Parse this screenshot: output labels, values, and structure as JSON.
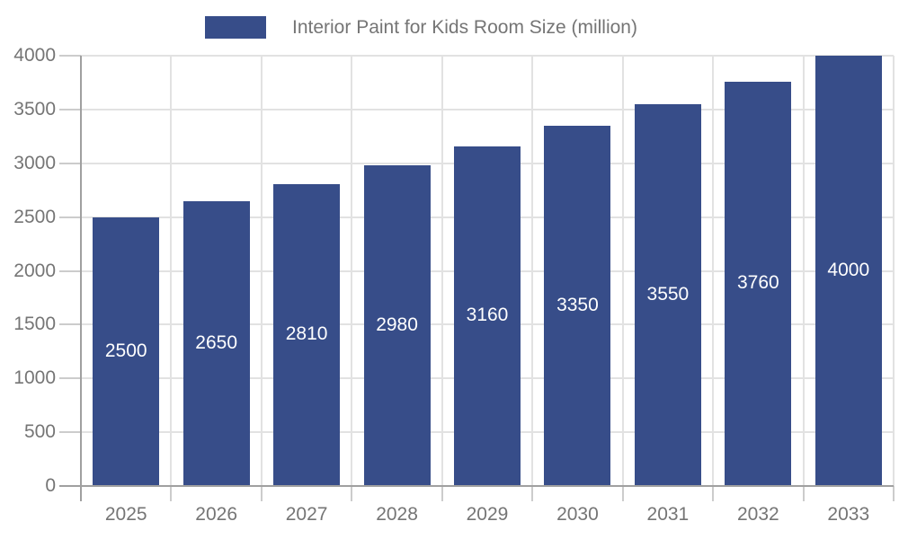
{
  "chart_data": {
    "type": "bar",
    "title": "Interior Paint for Kids Room Size (million)",
    "categories": [
      "2025",
      "2026",
      "2027",
      "2028",
      "2029",
      "2030",
      "2031",
      "2032",
      "2033"
    ],
    "values": [
      2500,
      2650,
      2810,
      2980,
      3160,
      3350,
      3550,
      3760,
      4000
    ],
    "bar_value_labels": [
      "2500",
      "2650",
      "2810",
      "2980",
      "3160",
      "3350",
      "3550",
      "3760",
      "4000"
    ],
    "xlabel": "",
    "ylabel": "",
    "ylim": [
      0,
      4000
    ],
    "ytick_step": 500,
    "ytick_labels": [
      "0",
      "500",
      "1000",
      "1500",
      "2000",
      "2500",
      "3000",
      "3500",
      "4000"
    ],
    "grid": true,
    "legend_position": "top",
    "colors": {
      "bar": "#374d89",
      "bar_label_text": "#ffffff",
      "axis_text": "#757575",
      "legend_text": "#757575",
      "gridline": "#e2e2e2",
      "tick": "#cccccc",
      "axis_line": "#a0a0a0",
      "background": "#ffffff"
    }
  }
}
